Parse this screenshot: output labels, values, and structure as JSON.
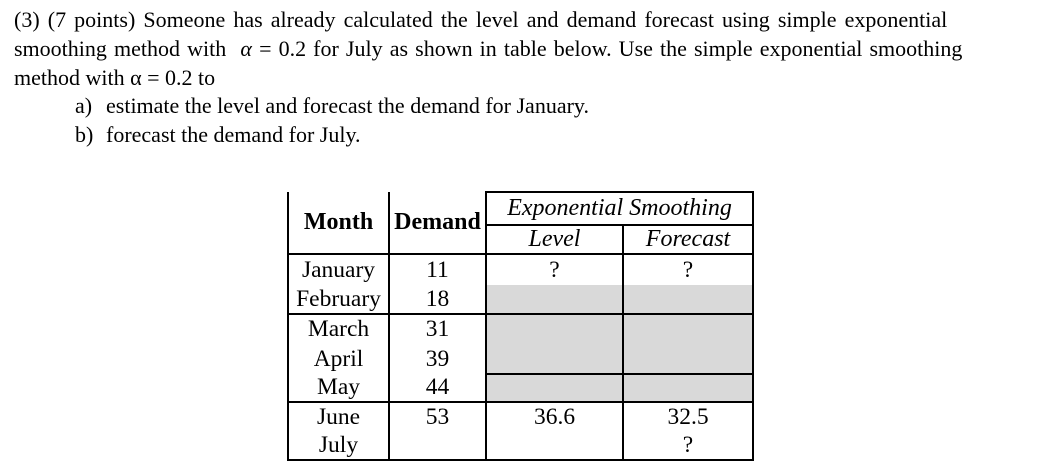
{
  "page": {
    "background": "#ffffff"
  },
  "problem": {
    "line1": "(3) (7 points) Someone has already calculated the level and demand forecast using simple exponential",
    "line2_pre": "smoothing method with  ",
    "alpha_italic": "α",
    "line2_post": " = 0.2 for July as shown in table below. Use the simple exponential smoothing",
    "line3_pre": "method with ",
    "alpha_upright": "α",
    "line3_post": " = 0.2 to",
    "items": [
      {
        "marker": "a)",
        "text": "estimate the level and forecast the demand for January."
      },
      {
        "marker": "b)",
        "text": "forecast the demand for July."
      }
    ]
  },
  "table": {
    "headers": {
      "month": "Month",
      "demand": "Demand",
      "group": "Exponential Smoothing",
      "level": "Level",
      "forecast": "Forecast"
    },
    "rows": [
      {
        "month": "January",
        "demand": "11",
        "level": "?",
        "forecast": "?",
        "shaded": false
      },
      {
        "month": "February",
        "demand": "18",
        "level": "",
        "forecast": "",
        "shaded": true
      },
      {
        "month": "March",
        "demand": "31",
        "level": "",
        "forecast": "",
        "shaded": true
      },
      {
        "month": "April",
        "demand": "39",
        "level": "",
        "forecast": "",
        "shaded": true
      },
      {
        "month": "May",
        "demand": "44",
        "level": "",
        "forecast": "",
        "shaded": true
      },
      {
        "month": "June",
        "demand": "53",
        "level": "36.6",
        "forecast": "32.5",
        "shaded": false
      },
      {
        "month": "July",
        "demand": "",
        "level": "",
        "forecast": "?",
        "shaded": false
      }
    ],
    "colors": {
      "border": "#000000",
      "shaded_cell": "#d9d9d9"
    }
  }
}
